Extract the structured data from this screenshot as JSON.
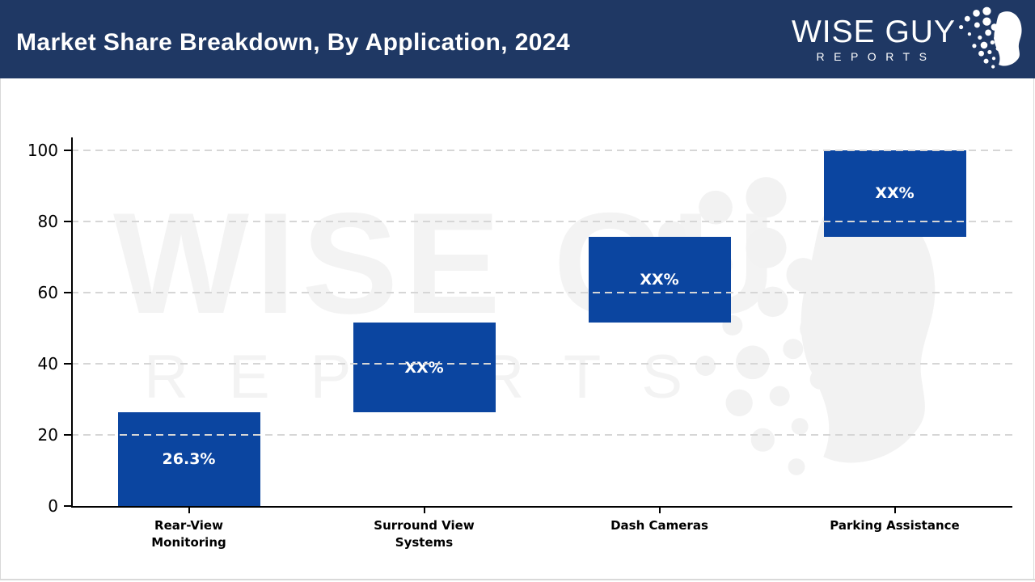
{
  "header": {
    "title": "Market Share Breakdown, By Application, 2024",
    "logo": {
      "name": "WISE GUY",
      "sub": "REPORTS"
    }
  },
  "watermark": {
    "line1": "WISE GU",
    "line2": "REPORTS"
  },
  "colors": {
    "header_bg": "#1f3864",
    "bar": "#0b45a0",
    "bar_label_text": "#ffffff",
    "axis": "#000000",
    "grid": "#d6d6d6",
    "watermark": "#f3f3f3"
  },
  "chart_data": {
    "type": "bar",
    "subtype": "waterfall",
    "title": "Market Share Breakdown, By Application, 2024",
    "xlabel": "",
    "ylabel": "",
    "ylim": [
      0,
      100
    ],
    "yticks": [
      0,
      20,
      40,
      60,
      80,
      100
    ],
    "grid": "dashed-horizontal",
    "legend": "none",
    "categories": [
      [
        "Rear-View",
        "Monitoring"
      ],
      [
        "Surround View",
        "Systems"
      ],
      [
        "Dash Cameras"
      ],
      [
        "Parking Assistance"
      ]
    ],
    "bars": [
      {
        "category": "Rear-View Monitoring",
        "start": 0,
        "end": 26.3,
        "label": "26.3%"
      },
      {
        "category": "Surround View Systems",
        "start": 26.3,
        "end": 51.5,
        "label": "XX%"
      },
      {
        "category": "Dash Cameras",
        "start": 51.5,
        "end": 75.7,
        "label": "XX%"
      },
      {
        "category": "Parking Assistance",
        "start": 75.7,
        "end": 100,
        "label": "XX%"
      }
    ]
  }
}
